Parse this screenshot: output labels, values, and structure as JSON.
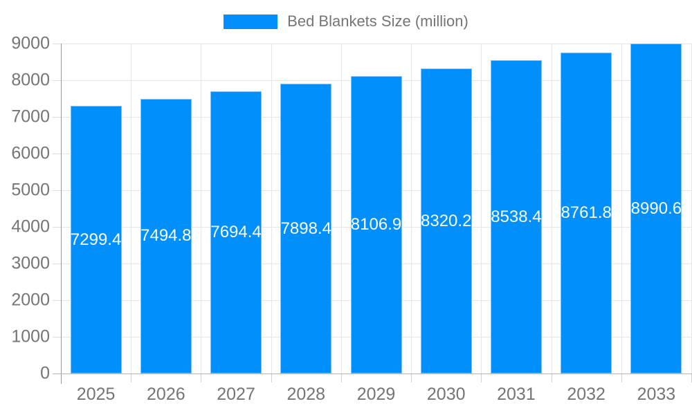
{
  "chart_data": {
    "type": "bar",
    "title": "Bed Blankets Size (million)",
    "categories": [
      "2025",
      "2026",
      "2027",
      "2028",
      "2029",
      "2030",
      "2031",
      "2032",
      "2033"
    ],
    "series": [
      {
        "name": "Bed Blankets Size (million)",
        "values": [
          7299.4,
          7494.8,
          7694.4,
          7898.4,
          8106.9,
          8320.2,
          8538.4,
          8761.8,
          8990.6
        ]
      }
    ],
    "bar_labels": [
      "7299.4",
      "7494.8",
      "7694.4",
      "7898.4",
      "8106.9",
      "8320.2",
      "8538.4",
      "8761.8",
      "8990.6"
    ],
    "xlabel": "",
    "ylabel": "",
    "ylim": [
      0,
      9000
    ],
    "yticks": [
      0,
      1000,
      2000,
      3000,
      4000,
      5000,
      6000,
      7000,
      8000,
      9000
    ],
    "grid": true,
    "legend_position": "top",
    "colors": {
      "bar": "#008FFB",
      "bar_stroke": "#7fc3fa",
      "bar_label_text": "#ffffff",
      "grid": "#e6e6e6",
      "y_axis_line": "#999999",
      "x_baseline": "#b3b3b3",
      "y_tick": "#dedede",
      "x_tick": "#d0d0d0",
      "axis_text": "#757575",
      "legend_text": "#757575"
    }
  }
}
